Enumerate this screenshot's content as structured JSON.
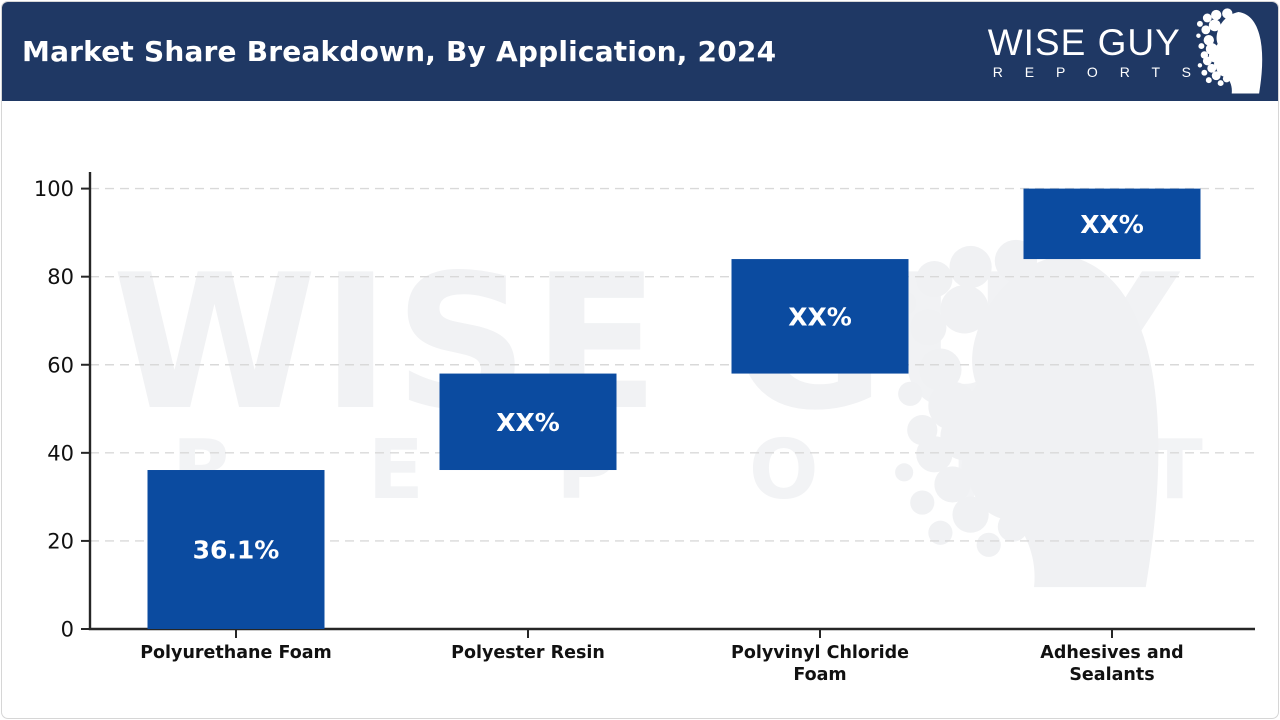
{
  "header": {
    "title": "Market Share Breakdown, By Application, 2024",
    "bg_color": "#1f3864",
    "logo": {
      "line1": "WISE GUY",
      "line2": "R E P O R T S"
    }
  },
  "watermark": {
    "line1": "WISE GUY",
    "line2": "R E P O R T S"
  },
  "chart_data": {
    "type": "bar",
    "subtype": "waterfall",
    "title": "Market Share Breakdown, By Application, 2024",
    "categories": [
      "Polyurethane Foam",
      "Polyester Resin",
      "Polyvinyl Chloride Foam",
      "Adhesives and Sealants"
    ],
    "category_lines": [
      [
        "Polyurethane Foam"
      ],
      [
        "Polyester Resin"
      ],
      [
        "Polyvinyl Chloride",
        "Foam"
      ],
      [
        "Adhesives and",
        "Sealants"
      ]
    ],
    "segments": [
      {
        "category": "Polyurethane Foam",
        "start": 0,
        "end": 36.1,
        "label": "36.1%"
      },
      {
        "category": "Polyester Resin",
        "start": 36.1,
        "end": 58,
        "label": "XX%"
      },
      {
        "category": "Polyvinyl Chloride Foam",
        "start": 58,
        "end": 84,
        "label": "XX%"
      },
      {
        "category": "Adhesives and Sealants",
        "start": 84,
        "end": 100,
        "label": "XX%"
      }
    ],
    "y_ticks": [
      0,
      20,
      40,
      60,
      80,
      100
    ],
    "ylim": [
      0,
      100
    ],
    "xlabel": "",
    "ylabel": "",
    "grid": "horizontal-dashed",
    "legend": "none",
    "bar_color": "#0b4ba0",
    "axis_color": "#262626",
    "grid_color": "#d9d9d9",
    "value_label_color": "#ffffff",
    "tick_label_color": "#111111"
  }
}
